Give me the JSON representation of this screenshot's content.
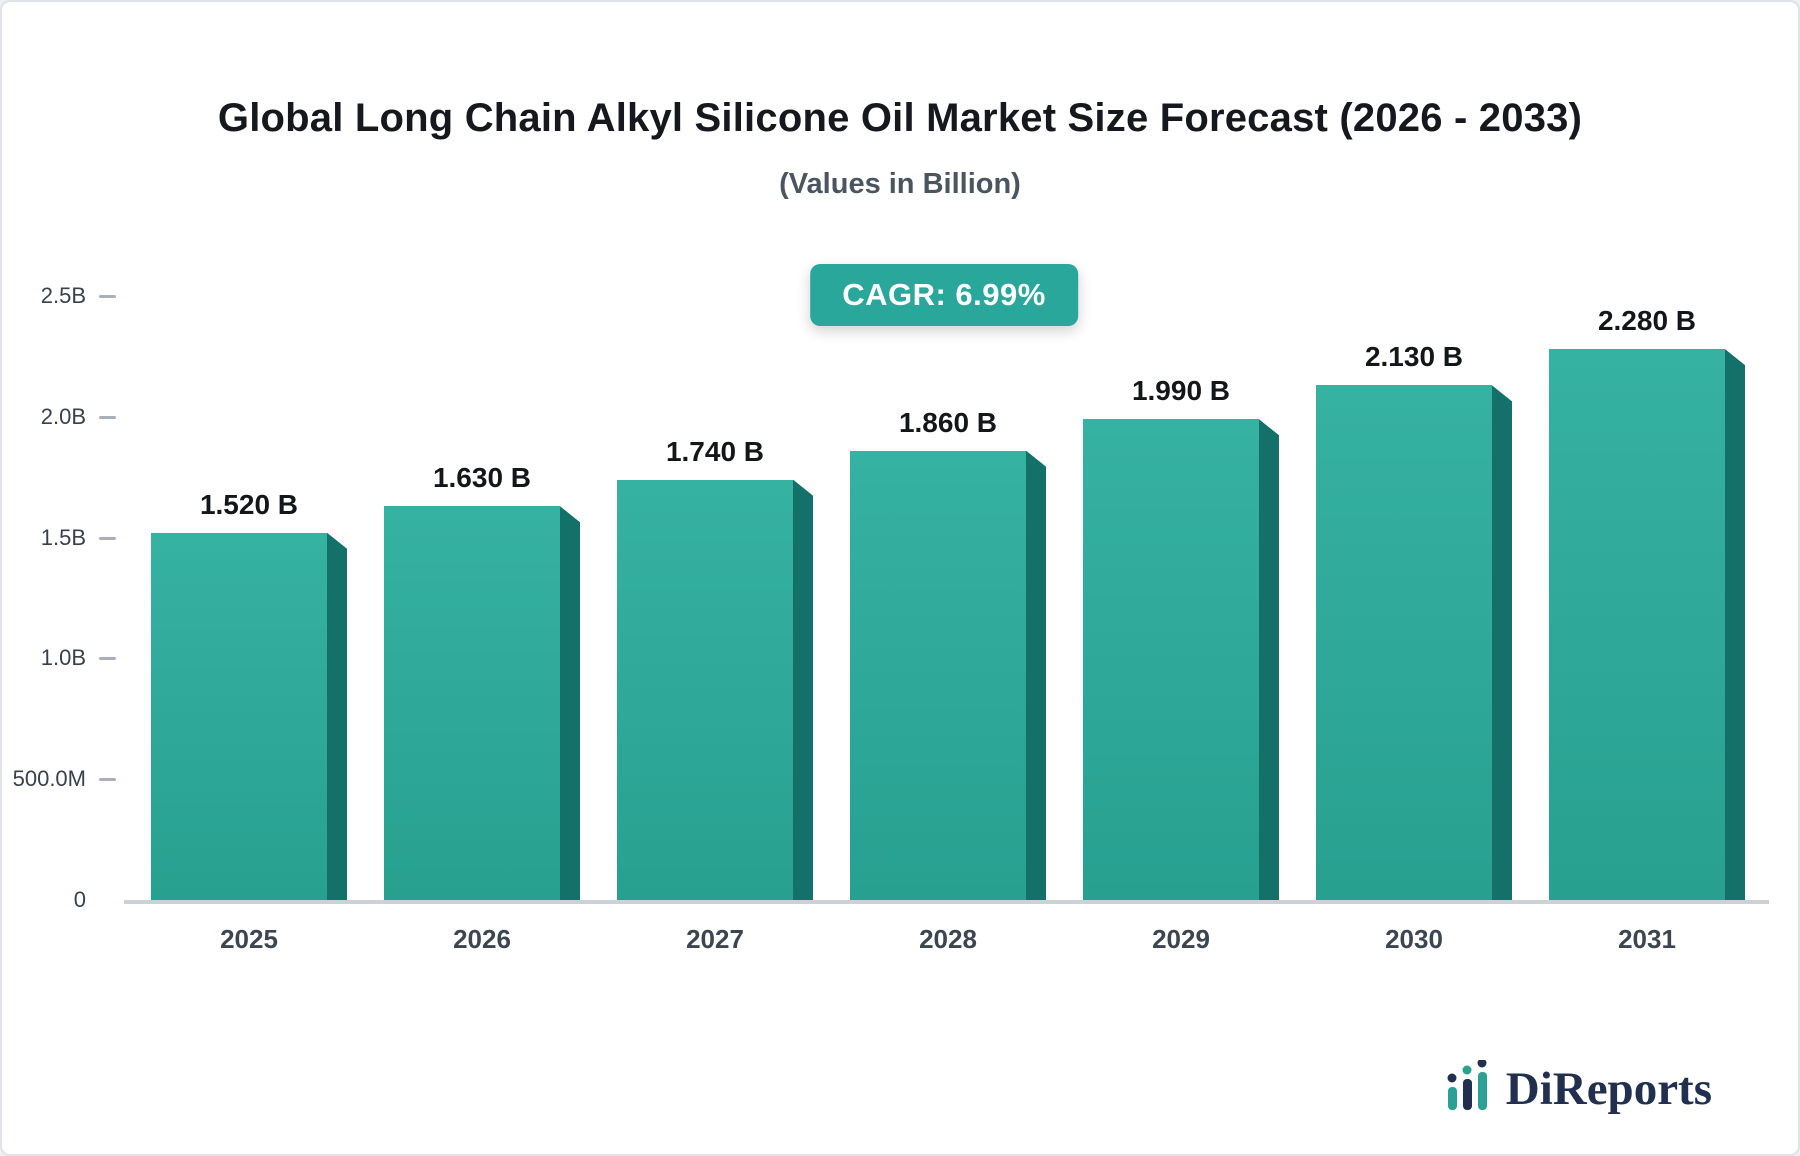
{
  "header": {
    "title": "Global Long Chain Alkyl Silicone Oil Market Size Forecast (2026 - 2033)",
    "subtitle": "(Values in Billion)"
  },
  "badge": {
    "label": "CAGR: 6.99%",
    "color": "#2aa79b"
  },
  "chart_data": {
    "type": "bar",
    "title": "Global Long Chain Alkyl Silicone Oil Market Size Forecast (2026 - 2033)",
    "subtitle": "(Values in Billion)",
    "categories": [
      "2025",
      "2026",
      "2027",
      "2028",
      "2029",
      "2030",
      "2031"
    ],
    "values": [
      1.52,
      1.63,
      1.74,
      1.86,
      1.99,
      2.13,
      2.28
    ],
    "value_labels": [
      "1.520 B",
      "1.630 B",
      "1.740 B",
      "1.860 B",
      "1.990 B",
      "2.130 B",
      "2.280 B"
    ],
    "y_ticks": [
      {
        "label": "2.5B",
        "value": 2.5
      },
      {
        "label": "2.0B",
        "value": 2.0
      },
      {
        "label": "1.5B",
        "value": 1.5
      },
      {
        "label": "1.0B",
        "value": 1.0
      },
      {
        "label": "500.0M",
        "value": 0.5
      },
      {
        "label": "0",
        "value": 0
      }
    ],
    "ylim": [
      0,
      2.5
    ],
    "grid": false,
    "legend": "none",
    "xlabel": "",
    "ylabel": "",
    "bar_color_top": "#36b2a2",
    "bar_color_bottom": "#27a090",
    "bar_side_color": "#147169"
  },
  "logo": {
    "text": "DiReports",
    "icon": "bar-chart-logo-icon",
    "icon_color": "#2aa192",
    "text_color": "#223050"
  }
}
